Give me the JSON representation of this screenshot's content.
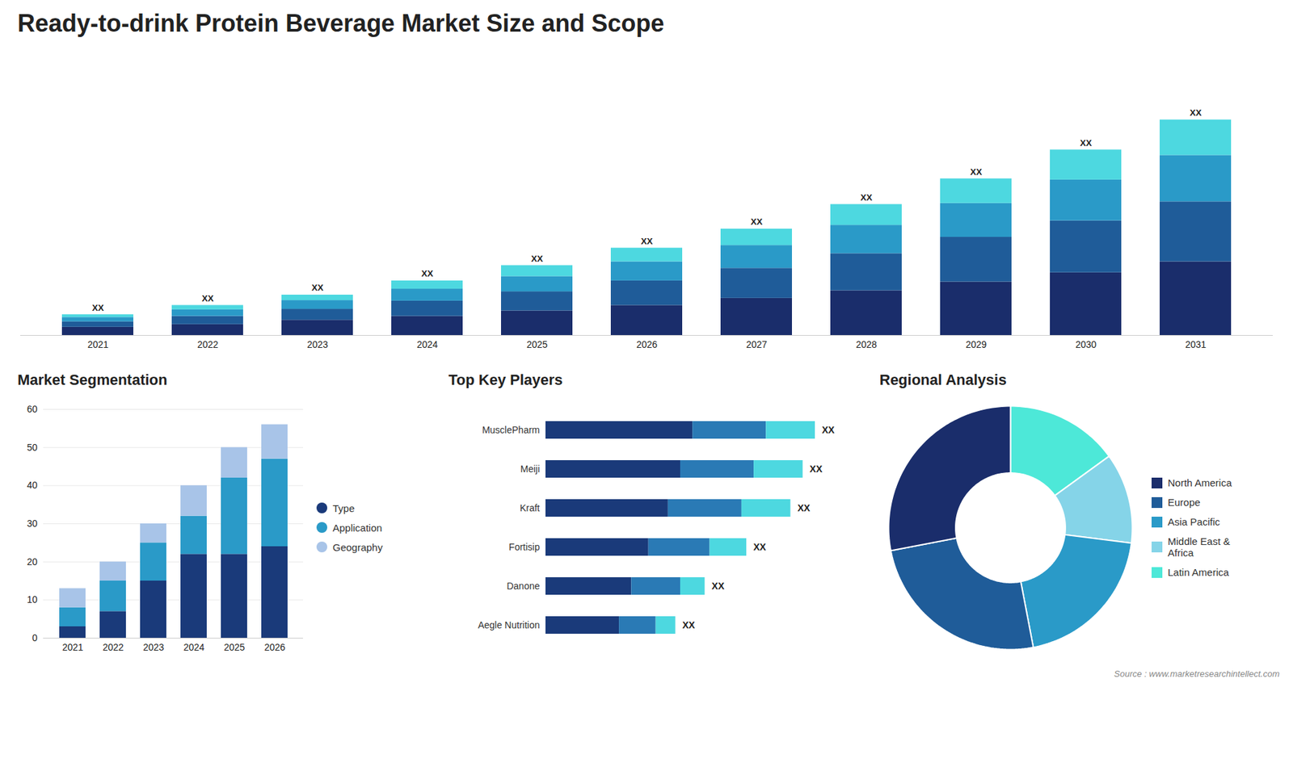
{
  "chart_data": [
    {
      "type": "bar",
      "title": "Ready-to-drink Protein Beverage Market Size and Scope",
      "stacked": true,
      "categories": [
        "2021",
        "2022",
        "2023",
        "2024",
        "2025",
        "2026",
        "2027",
        "2028",
        "2029",
        "2030",
        "2031"
      ],
      "series": [
        {
          "color": "#1a2d6b",
          "values": [
            1.5,
            2.0,
            2.8,
            3.5,
            4.5,
            5.5,
            6.8,
            8.2,
            9.8,
            11.5,
            13.5
          ]
        },
        {
          "color": "#1f5c99",
          "values": [
            1.0,
            1.5,
            2.0,
            2.8,
            3.5,
            4.5,
            5.5,
            6.8,
            8.2,
            9.5,
            11.0
          ]
        },
        {
          "color": "#2a9ac8",
          "values": [
            0.8,
            1.2,
            1.6,
            2.2,
            2.8,
            3.5,
            4.2,
            5.2,
            6.2,
            7.5,
            8.5
          ]
        },
        {
          "color": "#4dd8e0",
          "values": [
            0.5,
            0.8,
            1.0,
            1.5,
            2.0,
            2.5,
            3.0,
            3.8,
            4.5,
            5.5,
            6.5
          ]
        }
      ],
      "ylim": [
        0,
        50.56
      ],
      "tick_labels": "x",
      "grid": false,
      "annotations": [
        "XX",
        "XX",
        "XX",
        "XX",
        "XX",
        "XX",
        "XX",
        "XX",
        "XX",
        "XX",
        "XX"
      ]
    },
    {
      "type": "bar",
      "title": "Market Segmentation",
      "stacked": true,
      "categories": [
        "2021",
        "2022",
        "2023",
        "2024",
        "2025",
        "2026"
      ],
      "series": [
        {
          "name": "Type",
          "color": "#1a3a7a",
          "values": [
            3,
            7,
            15,
            22,
            22,
            24
          ],
          "marker": "circle"
        },
        {
          "name": "Application",
          "color": "#2a9ac8",
          "values": [
            5,
            8,
            10,
            10,
            20,
            23
          ],
          "marker": "circle"
        },
        {
          "name": "Geography",
          "color": "#a8c4e8",
          "values": [
            5,
            5,
            5,
            8,
            8,
            9
          ],
          "marker": "circle"
        }
      ],
      "ylim": [
        0,
        60
      ],
      "yticks": [
        0,
        10,
        20,
        30,
        40,
        50,
        60
      ],
      "grid": true,
      "legend": "right"
    },
    {
      "type": "bar",
      "title": "Top Key Players",
      "orientation": "horizontal",
      "stacked": true,
      "categories": [
        "MusclePharm",
        "Meiji",
        "Kraft",
        "Fortisip",
        "Danone",
        "Aegle Nutrition"
      ],
      "series": [
        {
          "color": "#1a3a7a",
          "values": [
            6,
            5.5,
            5,
            4.2,
            3.5,
            3.0
          ]
        },
        {
          "color": "#2a7ab5",
          "values": [
            3,
            3,
            3,
            2.5,
            2,
            1.5
          ]
        },
        {
          "color": "#4dd8e0",
          "values": [
            2,
            2,
            2,
            1.5,
            1,
            0.8
          ]
        }
      ],
      "xlim": [
        0,
        11
      ],
      "tick_labels": "y",
      "grid": false,
      "annotations": [
        "XX",
        "XX",
        "XX",
        "XX",
        "XX",
        "XX"
      ]
    },
    {
      "type": "pie",
      "title": "Regional Analysis",
      "categories": [
        "Latin America",
        "Middle East &\nAfrica",
        "Asia Pacific",
        "Europe",
        "North America"
      ],
      "values": [
        15,
        12,
        20,
        25,
        28
      ],
      "colors": [
        "#4de8d8",
        "#85d4e8",
        "#2a9ac8",
        "#1f5c99",
        "#1a2d6b"
      ],
      "legend": "right",
      "annotations": [
        "Source : www.marketresearchintellect.com"
      ]
    }
  ]
}
